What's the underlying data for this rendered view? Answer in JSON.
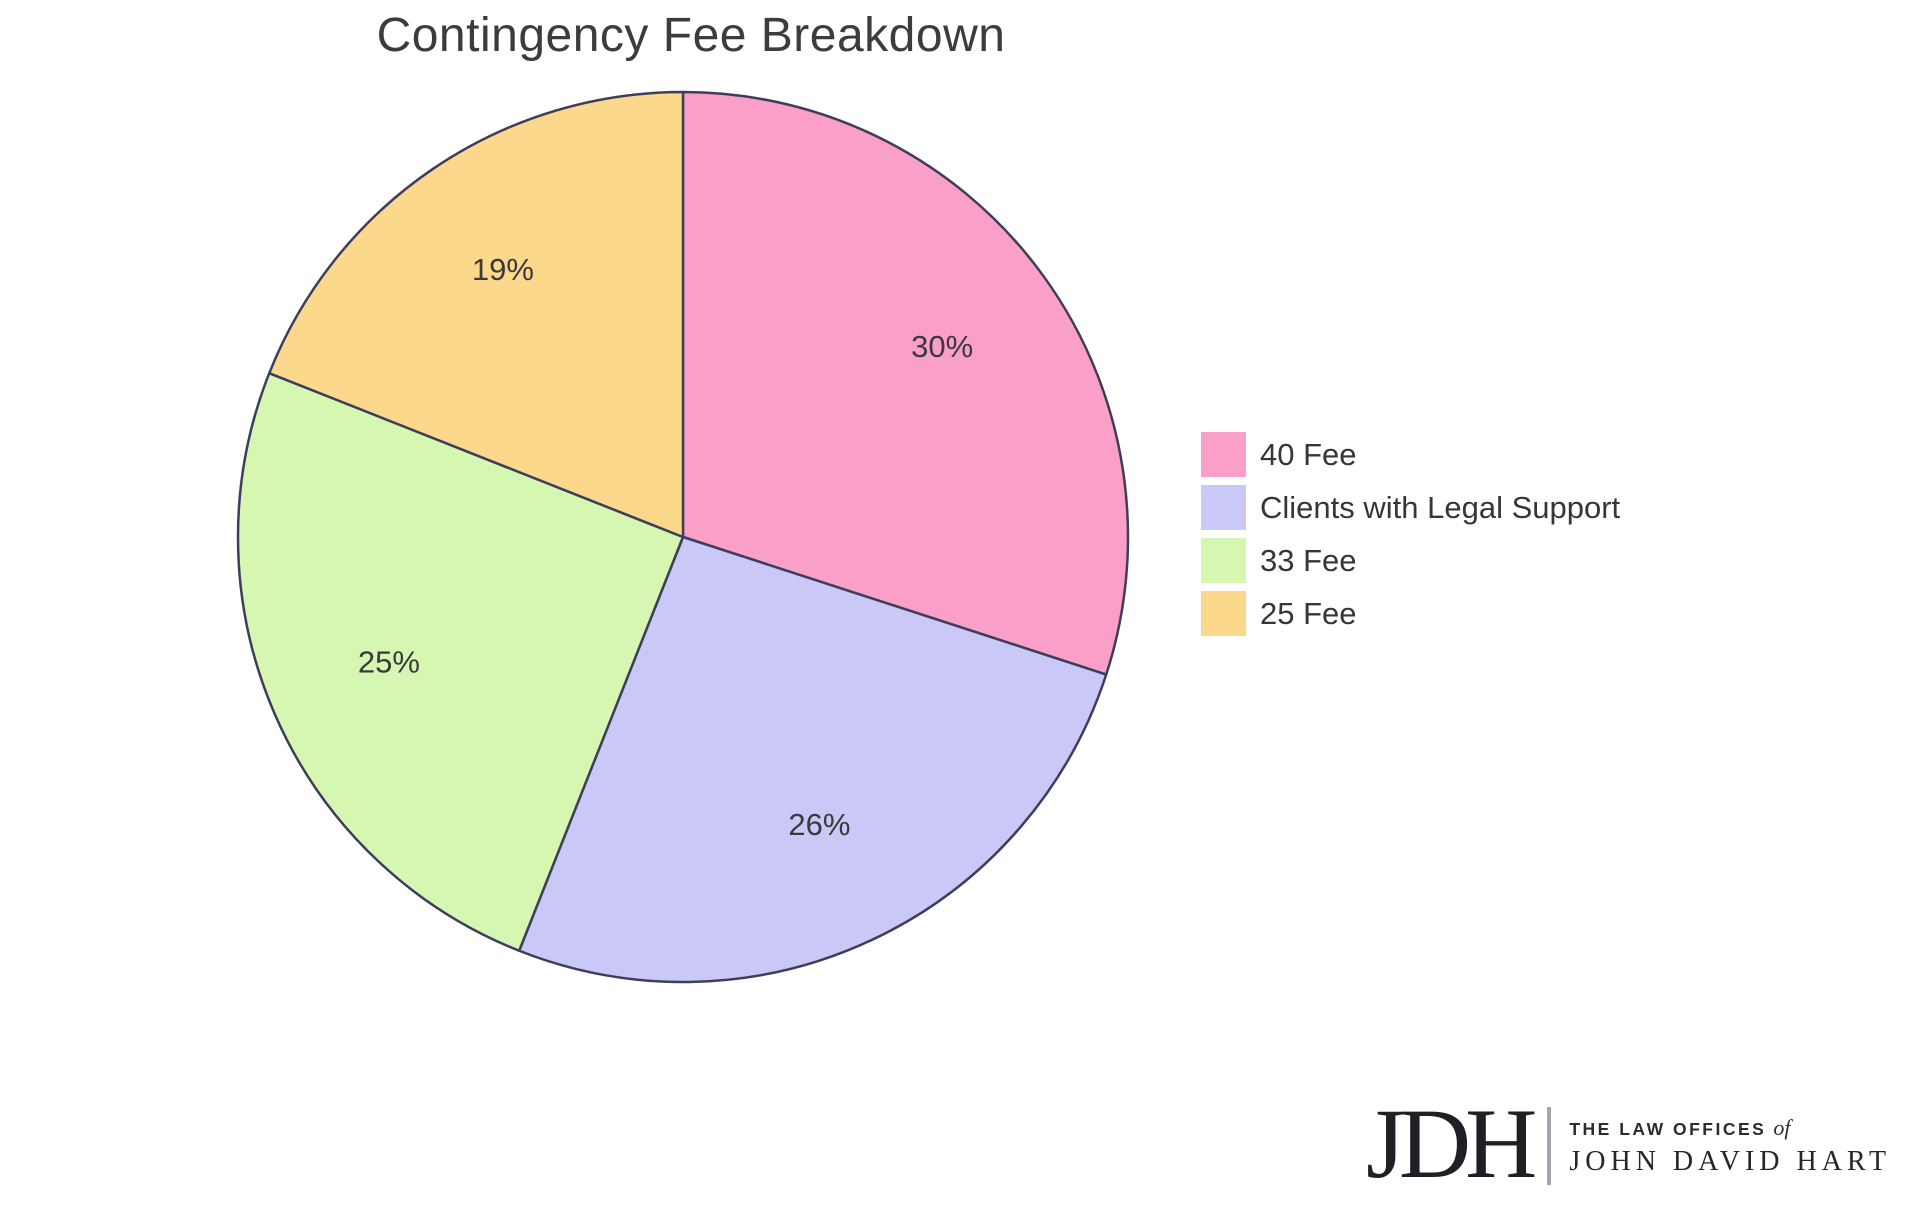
{
  "page": {
    "background": "#ffffff"
  },
  "chart_data": {
    "type": "pie",
    "title": "Contingency Fee Breakdown",
    "labels": [
      "40 Fee",
      "Clients with Legal Support",
      "33 Fee",
      "25 Fee"
    ],
    "values": [
      30,
      26,
      25,
      19
    ],
    "percent_labels": [
      "30%",
      "26%",
      "25%",
      "19%"
    ],
    "unit": "%",
    "colors": [
      "#FA9FC8",
      "#C9C8F7",
      "#D5F7B1",
      "#FBD88B"
    ],
    "slice_border_color": "#3E3E5B",
    "slice_label_color": "#3A3A3A",
    "start_angle": "12 o'clock",
    "direction": "clockwise",
    "legend_position": "right",
    "grid": false
  },
  "logo": {
    "monogram": "JDH",
    "tagline_prefix": "THE LAW OFFICES",
    "tagline_of": "of",
    "name": "JOHN DAVID HART"
  }
}
